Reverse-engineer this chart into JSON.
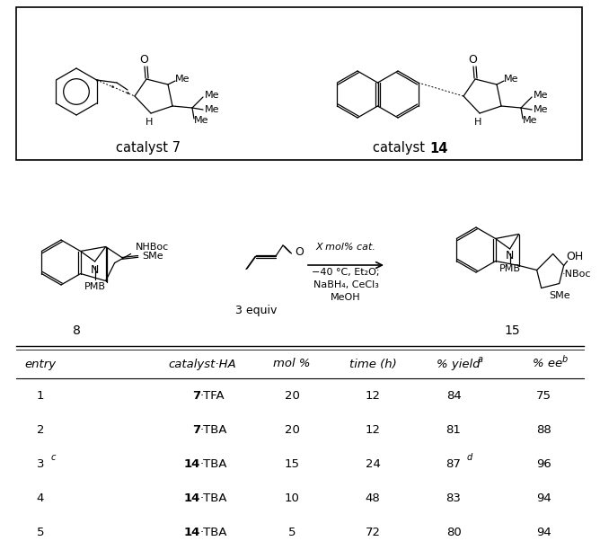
{
  "rows": [
    {
      "entry": "1",
      "catalyst_bold": "7",
      "catalyst_rest": "·TFA",
      "mol": "20",
      "time": "12",
      "yield": "84",
      "yield_super": "",
      "ee": "75",
      "entry_super": ""
    },
    {
      "entry": "2",
      "catalyst_bold": "7",
      "catalyst_rest": "·TBA",
      "mol": "20",
      "time": "12",
      "yield": "81",
      "yield_super": "",
      "ee": "88",
      "entry_super": ""
    },
    {
      "entry": "3",
      "catalyst_bold": "14",
      "catalyst_rest": "·TBA",
      "mol": "15",
      "time": "24",
      "yield": "87",
      "yield_super": "d",
      "ee": "96",
      "entry_super": "c"
    },
    {
      "entry": "4",
      "catalyst_bold": "14",
      "catalyst_rest": "·TBA",
      "mol": "10",
      "time": "48",
      "yield": "83",
      "yield_super": "",
      "ee": "94",
      "entry_super": ""
    },
    {
      "entry": "5",
      "catalyst_bold": "14",
      "catalyst_rest": "·TBA",
      "mol": "5",
      "time": "72",
      "yield": "80",
      "yield_super": "",
      "ee": "94",
      "entry_super": ""
    }
  ],
  "bg_color": "#ffffff",
  "text_color": "#000000",
  "lw": 0.9
}
